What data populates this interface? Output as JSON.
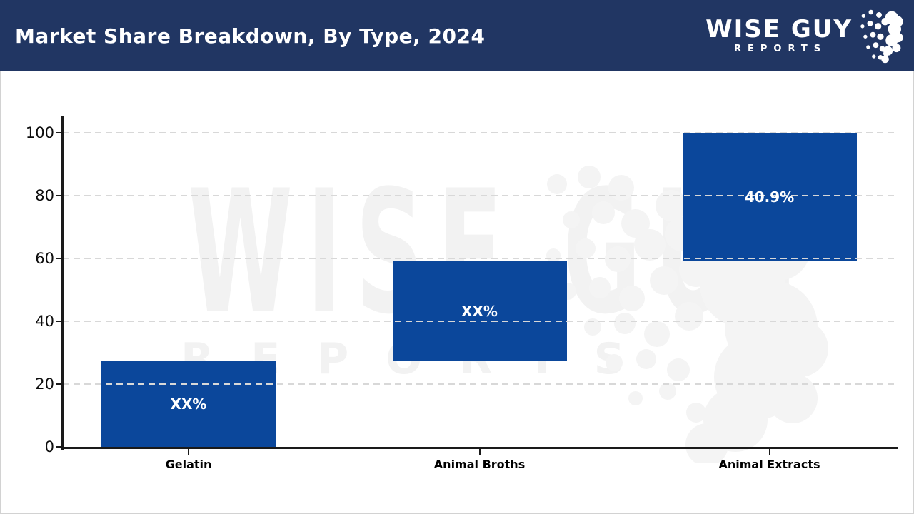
{
  "header": {
    "title": "Market Share Breakdown, By Type, 2024",
    "logo": {
      "line1": "WISE GUY",
      "line2": "REPORTS"
    }
  },
  "watermark": {
    "line1": "WISE GUY",
    "line2": "REPORTS"
  },
  "colors": {
    "header_bg": "#213663",
    "bar": "#0b479b",
    "bar_label": "#ffffff",
    "grid": "#d8d8d8",
    "axis": "#1a1a1a",
    "watermark": "#f2f2f2"
  },
  "chart_data": {
    "type": "bar",
    "variant": "stacked-waterfall-segments",
    "title": "Market Share Breakdown, By Type, 2024",
    "categories": [
      "Gelatin",
      "Animal Broths",
      "Animal Extracts"
    ],
    "segments": [
      {
        "category": "Gelatin",
        "start": 0,
        "end": 27.2,
        "label": "XX%"
      },
      {
        "category": "Animal Broths",
        "start": 27.2,
        "end": 59.1,
        "label": "XX%"
      },
      {
        "category": "Animal Extracts",
        "start": 59.1,
        "end": 100,
        "label": "40.9%"
      }
    ],
    "y_ticks": [
      0,
      20,
      40,
      60,
      80,
      100
    ],
    "ylim": [
      0,
      105
    ],
    "xlabel": "",
    "ylabel": "",
    "grid": "dashed-horizontal",
    "legend": "none"
  }
}
